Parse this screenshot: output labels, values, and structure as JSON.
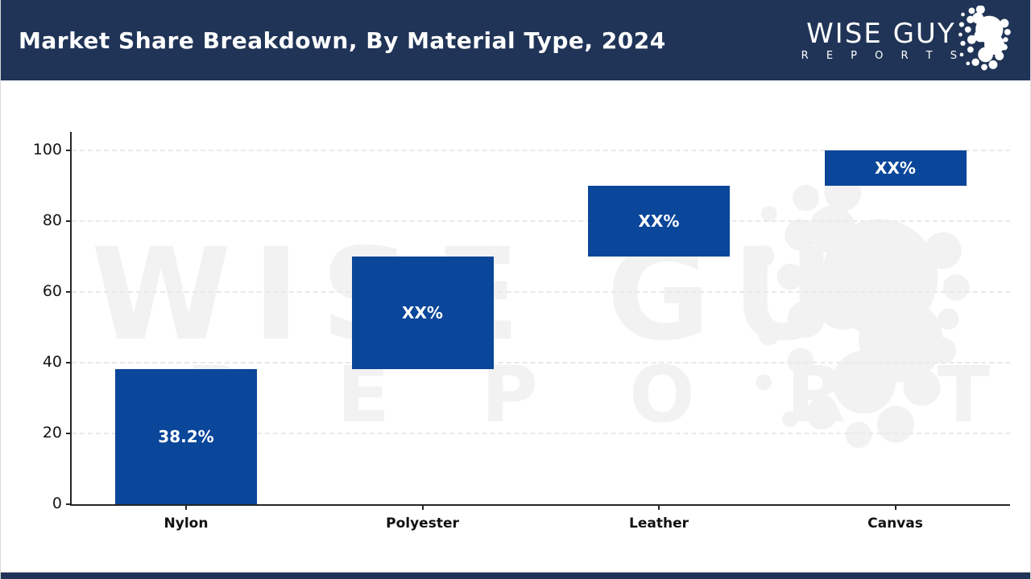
{
  "header": {
    "title": "Market Share Breakdown, By Material Type, 2024",
    "bg_color": "#203457"
  },
  "logo": {
    "line1": "WISE GUY",
    "line2": "R E P O R T S"
  },
  "watermark": {
    "line1": "WISE GUY",
    "line2": "R E P O R T S"
  },
  "chart_data": {
    "type": "bar",
    "subtype": "waterfall",
    "title": "Market Share Breakdown, By Material Type, 2024",
    "categories": [
      "Nylon",
      "Polyester",
      "Leather",
      "Canvas"
    ],
    "segments": [
      {
        "category": "Nylon",
        "start": 0,
        "end": 38.2,
        "label": "38.2%"
      },
      {
        "category": "Polyester",
        "start": 38.2,
        "end": 70,
        "label": "XX%"
      },
      {
        "category": "Leather",
        "start": 70,
        "end": 90,
        "label": "XX%"
      },
      {
        "category": "Canvas",
        "start": 90,
        "end": 100,
        "label": "XX%"
      }
    ],
    "yticks": [
      0,
      20,
      40,
      60,
      80,
      100
    ],
    "ylim": [
      0,
      105
    ],
    "grid": "horizontal-dashed",
    "legend": "none",
    "bar_color": "#0a4699",
    "bar_label_color": "#ffffff",
    "axis_color": "#262626",
    "grid_color": "#e9e9e9"
  }
}
